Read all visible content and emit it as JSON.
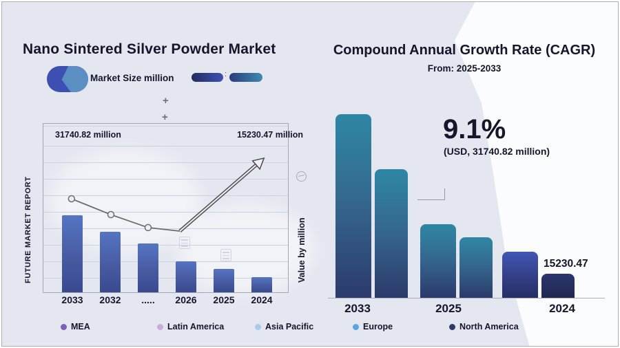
{
  "header": {
    "left_title": "Nano Sintered Silver Powder Market",
    "market_size_label": "Market Size million",
    "pill_separator": ":",
    "right_title": "Compound Annual Growth Rate (CAGR)",
    "right_subtitle": "From: 2025-2033"
  },
  "cagr": {
    "value": "9.1%",
    "detail": "(USD, 31740.82 million)"
  },
  "left_chart": {
    "start_annotation": "31740.82 million",
    "end_annotation": "15230.47 million",
    "y_axis_label": "FUTURE MARKET REPORT"
  },
  "right_chart": {
    "y_axis_label": "Value by million",
    "end_value_label": "15230.47"
  },
  "decorations": {
    "plus_1": "+",
    "plus_2": "+"
  },
  "legend": {
    "items": [
      {
        "label": "MEA",
        "color": "#7a61b6"
      },
      {
        "label": "Latin America",
        "color": "#cfa9db"
      },
      {
        "label": "Asia Pacific",
        "color": "#a8cbe9"
      },
      {
        "label": "Europe",
        "color": "#54a7e0"
      },
      {
        "label": "North America",
        "color": "#2d3a69"
      }
    ]
  },
  "colors": {
    "background": "#e4e7f0",
    "left_bar_top": "#5574c2",
    "left_bar_bottom": "#39498f",
    "teal_bar_top": "#2e87a4",
    "teal_bar_bottom": "#2c3a6b",
    "royal_bar_top": "#4156b5",
    "navy_bar": "#20284f",
    "title_text": "#15152b"
  },
  "chart_data": [
    {
      "type": "bar",
      "title": "Nano Sintered Silver Powder Market",
      "subtitle": "Market Size million",
      "ylabel": "FUTURE MARKET REPORT",
      "xlabel": "",
      "grid": true,
      "categories": [
        "2033",
        "2032",
        ".....",
        "2026",
        "2025",
        "2024"
      ],
      "values_relative": [
        1.0,
        0.79,
        0.63,
        0.4,
        0.3,
        0.2
      ],
      "annotations": {
        "start": "31740.82 million",
        "end": "15230.47 million"
      },
      "trend_line_points_relative": [
        [
          0.115,
          0.445
        ],
        [
          0.276,
          0.539
        ],
        [
          0.428,
          0.616
        ],
        [
          0.558,
          0.637
        ]
      ],
      "arrow_tip_relative": [
        0.902,
        0.204
      ],
      "legend_entries": [
        "MEA",
        "Latin America",
        "Asia Pacific",
        "Europe",
        "North America"
      ],
      "legend_position": "bottom"
    },
    {
      "type": "bar",
      "title": "Compound Annual Growth Rate (CAGR)",
      "subtitle": "From: 2025-2033",
      "ylabel": "Value by million",
      "grid": false,
      "categories": [
        "2033",
        "2025",
        "2024"
      ],
      "series": [
        {
          "name": "series-a",
          "values_relative": [
            1.0,
            0.4,
            0.25
          ]
        },
        {
          "name": "series-b",
          "values_relative": [
            0.7,
            0.33,
            0.13
          ]
        }
      ],
      "bar_palette_by_group": [
        "teal",
        "teal",
        "blue"
      ],
      "annotations": {
        "cagr": "9.1%",
        "cagr_detail": "(USD, 31740.82 million)",
        "end_value": "15230.47"
      },
      "legend_entries": [
        "MEA",
        "Latin America",
        "Asia Pacific",
        "Europe",
        "North America"
      ],
      "legend_position": "bottom"
    }
  ]
}
